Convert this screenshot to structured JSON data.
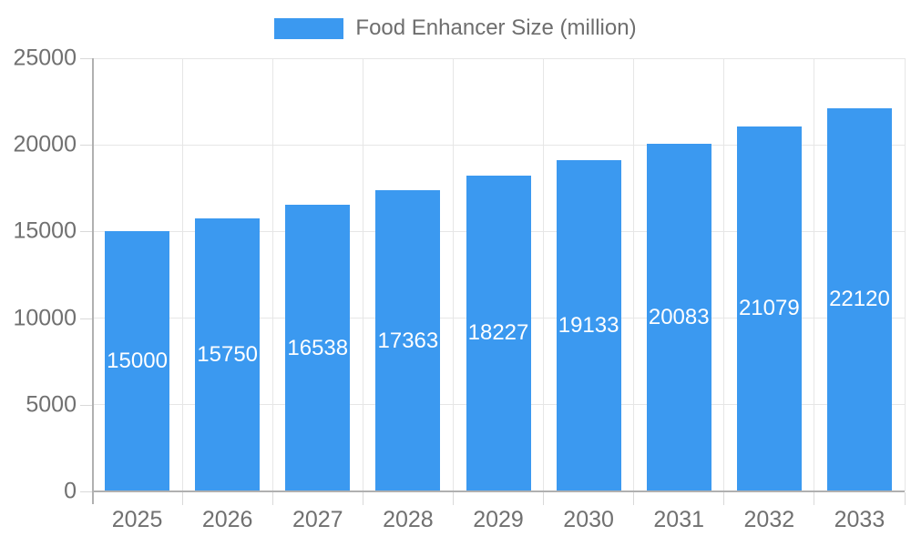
{
  "chart_data": {
    "type": "bar",
    "title": "Food Enhancer Size (million)",
    "categories": [
      "2025",
      "2026",
      "2027",
      "2028",
      "2029",
      "2030",
      "2031",
      "2032",
      "2033"
    ],
    "values": [
      15000,
      15750,
      16538,
      17363,
      18227,
      19133,
      20083,
      21079,
      22120
    ],
    "xlabel": "",
    "ylabel": "",
    "ylim": [
      0,
      25000
    ],
    "yticks": [
      0,
      5000,
      10000,
      15000,
      20000,
      25000
    ],
    "grid": "horizontal value gridlines and vertical category-boundary gridlines",
    "legend_position": "top-center",
    "value_labels": "inside bars, vertically centered, white",
    "colors": {
      "bar": "#3b99f0",
      "bar_label": "#ffffff",
      "axis_text": "#707070",
      "legend_text": "#6e6e6e",
      "gridline": "#e6e6e6",
      "tick": "#d9d9d9",
      "axis_line": "#b0b0b0",
      "background": "#ffffff"
    }
  }
}
